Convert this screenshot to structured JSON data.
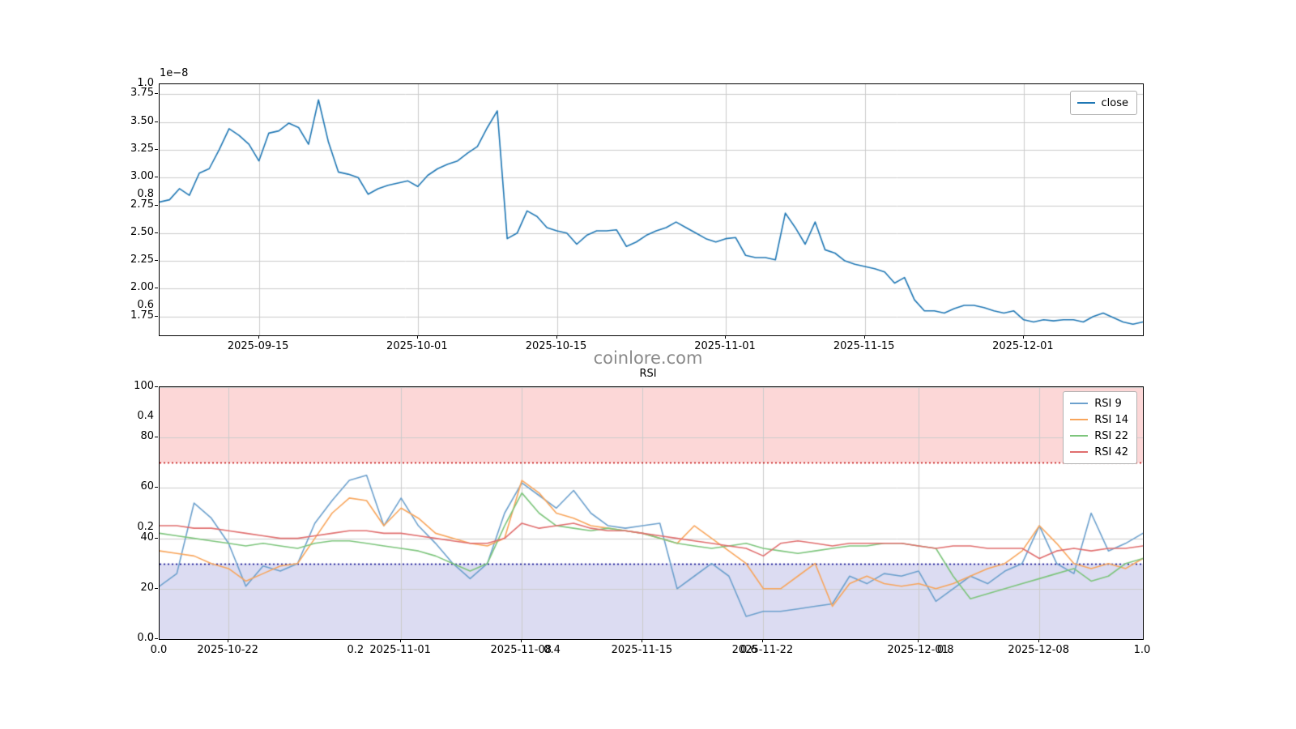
{
  "watermark": "coinlore.com",
  "colors": {
    "background": "#ffffff",
    "grid": "#cbcbcb",
    "watermark_text": "#8a8a8a",
    "axis_text": "#000000"
  },
  "hidden_axes": {
    "x_tick_values": [
      0,
      0.2,
      0.4,
      0.6,
      0.8,
      1.0
    ],
    "x_tick_labels": [
      "0.0",
      "0.2",
      "0.4",
      "0.6",
      "0.8",
      "1.0"
    ],
    "y_tick_values": [
      0,
      0.2,
      0.4,
      0.6,
      0.8,
      1.0
    ],
    "y_tick_labels": [
      "0.0",
      "0.2",
      "0.4",
      "0.6",
      "0.8",
      "1.0"
    ]
  },
  "chart_data": [
    {
      "name": "price",
      "type": "line",
      "title": "",
      "offset_label": "1e−8",
      "grid": true,
      "legend_position": "upper right",
      "x_domain": [
        0,
        99
      ],
      "xtick_days": [
        10,
        26,
        40,
        57,
        71,
        87
      ],
      "xtick_labels": [
        "2025-09-15",
        "2025-10-01",
        "2025-10-15",
        "2025-11-01",
        "2025-11-15",
        "2025-12-01"
      ],
      "ylim": [
        1.58,
        3.84
      ],
      "ytick_values": [
        1.75,
        2.0,
        2.25,
        2.5,
        2.75,
        3.0,
        3.25,
        3.5,
        3.75
      ],
      "ytick_labels": [
        "1.75",
        "2.00",
        "2.25",
        "2.50",
        "2.75",
        "3.00",
        "3.25",
        "3.50",
        "3.75"
      ],
      "series": [
        {
          "name": "close",
          "color": "#1f77b4",
          "values": [
            2.78,
            2.8,
            2.9,
            2.84,
            3.04,
            3.08,
            3.25,
            3.44,
            3.38,
            3.3,
            3.15,
            3.4,
            3.42,
            3.49,
            3.45,
            3.3,
            3.7,
            3.32,
            3.05,
            3.03,
            3.0,
            2.85,
            2.9,
            2.93,
            2.95,
            2.97,
            2.92,
            3.02,
            3.08,
            3.12,
            3.15,
            3.22,
            3.28,
            3.45,
            3.6,
            2.45,
            2.5,
            2.7,
            2.65,
            2.55,
            2.52,
            2.5,
            2.4,
            2.48,
            2.52,
            2.52,
            2.53,
            2.38,
            2.42,
            2.48,
            2.52,
            2.55,
            2.6,
            2.55,
            2.5,
            2.45,
            2.42,
            2.45,
            2.46,
            2.3,
            2.28,
            2.28,
            2.26,
            2.68,
            2.55,
            2.4,
            2.6,
            2.35,
            2.32,
            2.25,
            2.22,
            2.2,
            2.18,
            2.15,
            2.05,
            2.1,
            1.9,
            1.8,
            1.8,
            1.78,
            1.82,
            1.85,
            1.85,
            1.83,
            1.8,
            1.78,
            1.8,
            1.72,
            1.7,
            1.72,
            1.71,
            1.72,
            1.72,
            1.7,
            1.75,
            1.78,
            1.74,
            1.7,
            1.68,
            1.7
          ]
        }
      ]
    },
    {
      "name": "rsi",
      "type": "line",
      "title": "RSI",
      "grid": true,
      "legend_position": "upper right",
      "x_domain": [
        0,
        57
      ],
      "xtick_days": [
        4,
        14,
        21,
        28,
        35,
        44,
        51
      ],
      "xtick_labels": [
        "2025-10-22",
        "2025-11-01",
        "2025-11-08",
        "2025-11-15",
        "2025-11-22",
        "2025-12-01",
        "2025-12-08"
      ],
      "ylim": [
        0,
        100
      ],
      "ytick_values": [
        0,
        20,
        40,
        60,
        80,
        100
      ],
      "ytick_labels": [
        "0",
        "20",
        "40",
        "60",
        "80",
        "100"
      ],
      "zones": [
        {
          "from": 70,
          "to": 100,
          "color": "#fcd7d7"
        },
        {
          "from": 0,
          "to": 30,
          "color": "#dcdcf2"
        }
      ],
      "hlines": [
        {
          "y": 70,
          "color": "#c00000",
          "style": "dotted"
        },
        {
          "y": 30,
          "color": "#00008b",
          "style": "dotted"
        }
      ],
      "series": [
        {
          "name": "RSI 9",
          "color": "#6ca0cd",
          "values": [
            21,
            26,
            54,
            48,
            38,
            21,
            29,
            27,
            30,
            46,
            55,
            63,
            65,
            45,
            56,
            45,
            38,
            30,
            24,
            30,
            50,
            62,
            57,
            52,
            59,
            50,
            45,
            44,
            45,
            46,
            20,
            25,
            30,
            25,
            9,
            11,
            11,
            12,
            13,
            14,
            25,
            22,
            26,
            25,
            27,
            15,
            20,
            25,
            22,
            27,
            30,
            45,
            30,
            26,
            50,
            35,
            38,
            42
          ]
        },
        {
          "name": "RSI 14",
          "color": "#f8a55b",
          "values": [
            35,
            34,
            33,
            30,
            28,
            23,
            26,
            29,
            30,
            40,
            50,
            56,
            55,
            45,
            52,
            48,
            42,
            40,
            38,
            37,
            40,
            63,
            58,
            50,
            48,
            45,
            44,
            43,
            42,
            40,
            38,
            45,
            40,
            35,
            30,
            20,
            20,
            25,
            30,
            13,
            22,
            25,
            22,
            21,
            22,
            20,
            22,
            25,
            28,
            30,
            35,
            45,
            38,
            30,
            28,
            30,
            28,
            32
          ]
        },
        {
          "name": "RSI 22",
          "color": "#7dc57c",
          "values": [
            42,
            41,
            40,
            39,
            38,
            37,
            38,
            37,
            36,
            38,
            39,
            39,
            38,
            37,
            36,
            35,
            33,
            30,
            27,
            30,
            45,
            58,
            50,
            45,
            44,
            43,
            44,
            43,
            42,
            40,
            38,
            37,
            36,
            37,
            38,
            36,
            35,
            34,
            35,
            36,
            37,
            37,
            38,
            38,
            37,
            36,
            25,
            16,
            18,
            20,
            22,
            24,
            26,
            28,
            23,
            25,
            30,
            32
          ]
        },
        {
          "name": "RSI 42",
          "color": "#e06e6e",
          "values": [
            45,
            45,
            44,
            44,
            43,
            42,
            41,
            40,
            40,
            41,
            42,
            43,
            43,
            42,
            42,
            41,
            40,
            39,
            38,
            38,
            40,
            46,
            44,
            45,
            46,
            44,
            43,
            43,
            42,
            41,
            40,
            39,
            38,
            37,
            36,
            33,
            38,
            39,
            38,
            37,
            38,
            38,
            38,
            38,
            37,
            36,
            37,
            37,
            36,
            36,
            36,
            32,
            35,
            36,
            35,
            36,
            36,
            37
          ]
        }
      ]
    }
  ]
}
